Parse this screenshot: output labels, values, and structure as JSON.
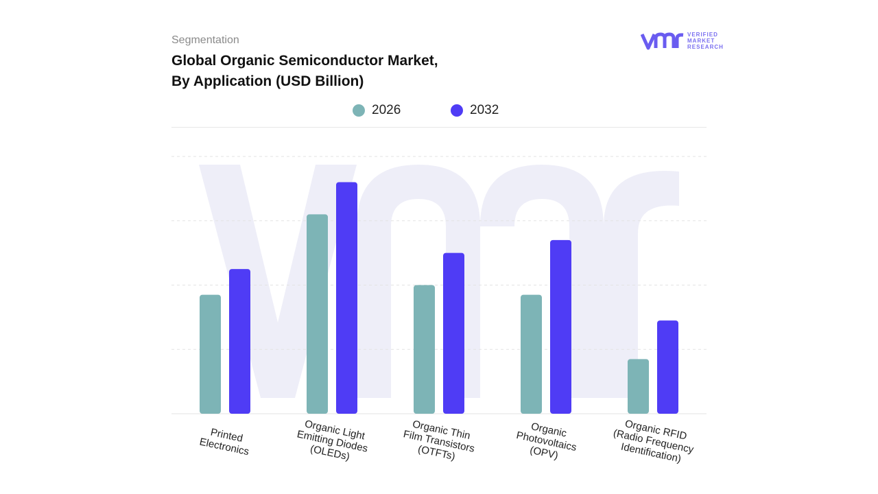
{
  "header": {
    "subtitle": "Segmentation",
    "title_line1": "Global Organic Semiconductor Market,",
    "title_line2": "By Application (USD Billion)"
  },
  "logo": {
    "mark": "vmr",
    "line1": "VERIFIED",
    "line2": "MARKET",
    "line3": "RESEARCH"
  },
  "colors": {
    "series_2026": "#7db4b6",
    "series_2032": "#4f3cf5",
    "watermark": "#eeeef8",
    "grid": "#e3e3e3",
    "logo": "#6a5cf0"
  },
  "chart_data": {
    "type": "bar",
    "title": "Global Organic Semiconductor Market, By Application (USD Billion)",
    "categories": [
      [
        "Printed",
        "Electronics"
      ],
      [
        "Organic Light",
        "Emitting Diodes",
        "(OLEDs)"
      ],
      [
        "Organic Thin",
        "Film Transistors",
        "(OTFTs)"
      ],
      [
        "Organic",
        "Photovoltaics",
        "(OPV)"
      ],
      [
        "Organic RFID",
        "(Radio Frequency",
        "Identification)"
      ]
    ],
    "series": [
      {
        "name": "2026",
        "values": [
          1.85,
          3.1,
          2.0,
          1.85,
          0.85
        ]
      },
      {
        "name": "2032",
        "values": [
          2.25,
          3.6,
          2.5,
          2.7,
          1.45
        ]
      }
    ],
    "ylim": [
      0,
      4
    ],
    "grid": true,
    "legend": "top-center"
  }
}
